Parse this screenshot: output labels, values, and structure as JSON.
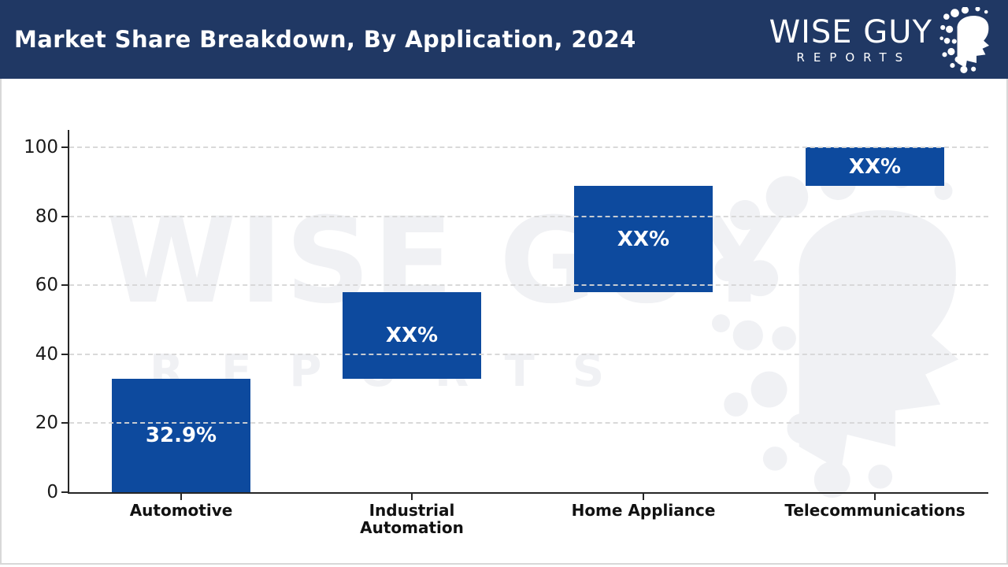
{
  "header": {
    "title": "Market Share Breakdown, By Application, 2024",
    "logo_line1": "WISE GUY",
    "logo_line2": "REPORTS"
  },
  "watermark": {
    "line1": "WISE GUY",
    "line2": "REPORTS"
  },
  "chart_data": {
    "type": "bar",
    "subtype": "floating-waterfall",
    "title": "Market Share Breakdown, By Application, 2024",
    "categories": [
      "Automotive",
      "Industrial Automation",
      "Home Appliance",
      "Telecommunications"
    ],
    "segments": [
      {
        "category": "Automotive",
        "start": 0,
        "end": 32.9,
        "value": 32.9,
        "label": "32.9%"
      },
      {
        "category": "Industrial Automation",
        "start": 32.9,
        "end": 58.0,
        "value": 25.1,
        "label": "XX%"
      },
      {
        "category": "Home Appliance",
        "start": 58.0,
        "end": 88.7,
        "value": 30.7,
        "label": "XX%"
      },
      {
        "category": "Telecommunications",
        "start": 88.7,
        "end": 100.0,
        "value": 11.3,
        "label": "XX%"
      }
    ],
    "yticks": [
      0,
      20,
      40,
      60,
      80,
      100
    ],
    "ylim": [
      0,
      105
    ],
    "xlabel": "",
    "ylabel": "",
    "grid": "horizontal-dashed",
    "legend": "none"
  },
  "colors": {
    "header_bg": "#203864",
    "bar_fill": "#0d4a9e",
    "bar_label": "#ffffff",
    "grid": "#d6d6d6",
    "axis": "#262626",
    "tick_label": "#1a1a1a",
    "watermark": "#f0f1f4",
    "frame_border": "#d8d8d8"
  }
}
